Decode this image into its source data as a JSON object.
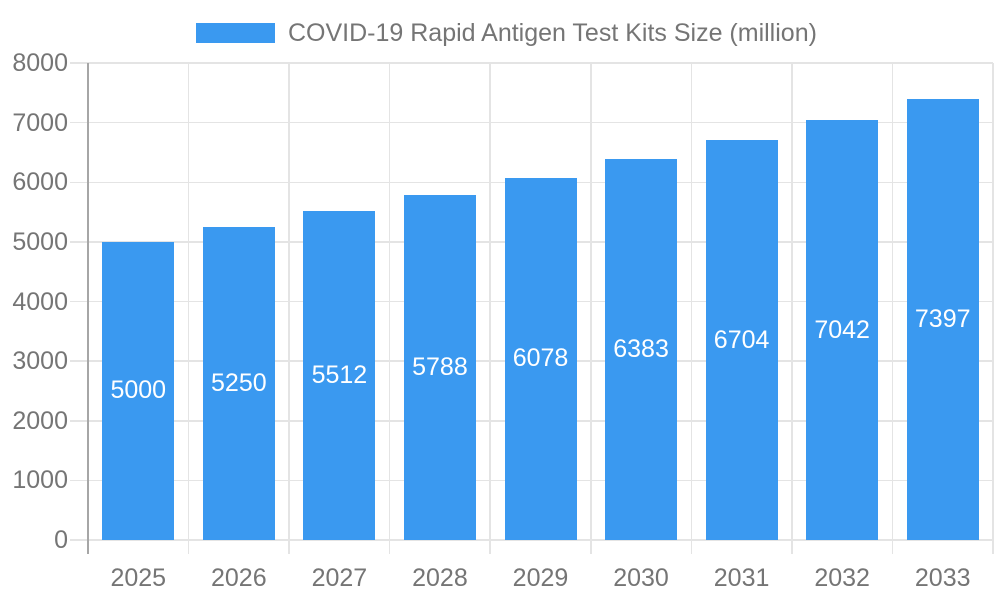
{
  "chart_data": {
    "type": "bar",
    "title": "COVID-19 Rapid Antigen Test Kits Size (million)",
    "legend_position": "top",
    "categories": [
      "2025",
      "2026",
      "2027",
      "2028",
      "2029",
      "2030",
      "2031",
      "2032",
      "2033"
    ],
    "values": [
      5000,
      5250,
      5512,
      5788,
      6078,
      6383,
      6704,
      7042,
      7397
    ],
    "xlabel": "",
    "ylabel": "",
    "ylim": [
      0,
      8000
    ],
    "ytick_step": 1000,
    "ytick_labels": [
      "0",
      "1000",
      "2000",
      "3000",
      "4000",
      "5000",
      "6000",
      "7000",
      "8000"
    ],
    "grid": true,
    "colors": {
      "bar": "#3A99F0",
      "bar_label": "#FFFFFF",
      "grid": "#E4E4E4",
      "axis": "#A6A6A6",
      "tick_text": "#757575",
      "legend_text": "#757575",
      "background": "#FFFFFF"
    }
  }
}
